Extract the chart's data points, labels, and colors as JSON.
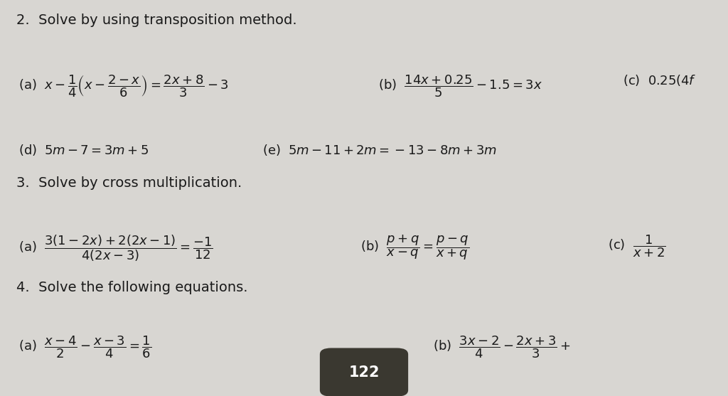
{
  "page_bg": "#d8d6d2",
  "bottom_bg": "#c8c6c2",
  "title2": "2.  Solve by using transposition method.",
  "line2a": "(a)  $x-\\dfrac{1}{4}\\left(x-\\dfrac{2-x}{6}\\right)=\\dfrac{2x+8}{3}-3$",
  "line2b": "(b)  $\\dfrac{14x+0.25}{5}-1.5=3x$",
  "line2c": "(c)  $0.25(4f$",
  "line2d": "(d)  $5m-7=3m+5$",
  "line2e": "(e)  $5m-11+2m=-13-8m+3m$",
  "title3": "3.  Solve by cross multiplication.",
  "line3a": "(a)  $\\dfrac{3(1-2x)+2(2x-1)}{4(2x-3)}=\\dfrac{-1}{12}$",
  "line3b": "(b)  $\\dfrac{p+q}{x-q}=\\dfrac{p-q}{x+q}$",
  "line3c": "(c)  $\\dfrac{1}{x+2}$",
  "title4": "4.  Solve the following equations.",
  "line4a": "(a)  $\\dfrac{x-4}{2}-\\dfrac{x-3}{4}=\\dfrac{1}{6}$",
  "line4b": "(b)  $\\dfrac{3x-2}{4}-\\dfrac{2x+3}{3}+$",
  "page_num": "122",
  "badge_color": "#3a3830",
  "text_color": "#1a1a1a",
  "font_size_title": 14,
  "font_size_body": 13
}
